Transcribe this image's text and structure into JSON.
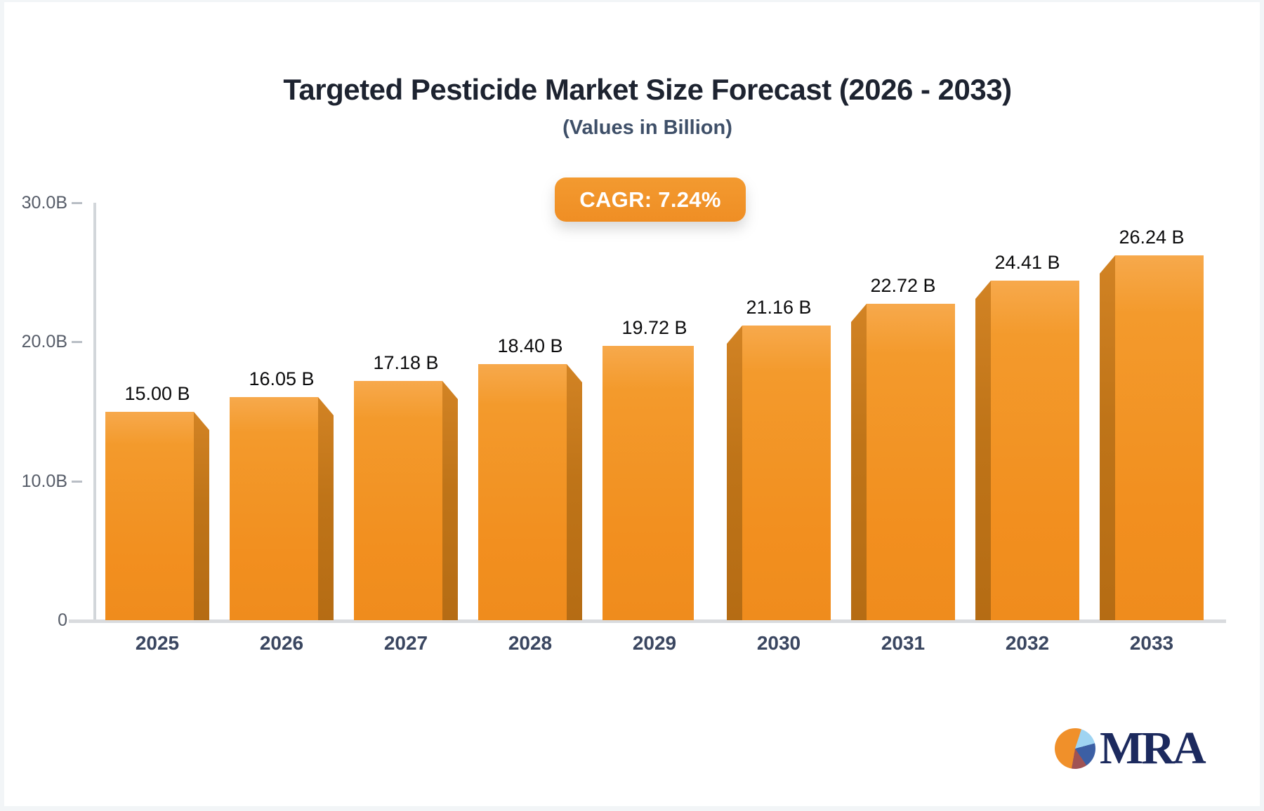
{
  "title": "Targeted Pesticide Market Size Forecast (2026 - 2033)",
  "subtitle": "(Values in Billion)",
  "badge": {
    "label": "CAGR: 7.24%"
  },
  "chart_data": {
    "type": "bar",
    "title": "Targeted Pesticide Market Size Forecast (2026 - 2033)",
    "subtitle": "(Values in Billion)",
    "annotation": "CAGR: 7.24%",
    "categories": [
      "2025",
      "2026",
      "2027",
      "2028",
      "2029",
      "2030",
      "2031",
      "2032",
      "2033"
    ],
    "values": [
      15.0,
      16.05,
      17.18,
      18.4,
      19.72,
      21.16,
      22.72,
      24.41,
      26.24
    ],
    "value_labels": [
      "15.00 B",
      "16.05 B",
      "17.18 B",
      "18.40 B",
      "19.72 B",
      "21.16 B",
      "22.72 B",
      "24.41 B",
      "26.24 B"
    ],
    "xlabel": "",
    "ylabel": "",
    "ylim": [
      0,
      30
    ],
    "y_ticks": [
      {
        "label": "30.0B",
        "value": 30
      },
      {
        "label": "20.0B",
        "value": 20
      },
      {
        "label": "10.0B",
        "value": 10
      },
      {
        "label": "0",
        "value": 0
      }
    ],
    "grid": false,
    "legend": false,
    "bar_color": "#F2911F",
    "bar_side_color": "#BF7418",
    "label_color": "#0B0B0C",
    "axis_color": "#D2D6DA"
  },
  "colors": {
    "accent_orange": "#F0922B",
    "title_text": "#1D2330",
    "subtitle_text": "#3E4F68",
    "year_text": "#3A4660",
    "ytick_text": "#565C68"
  },
  "logo": {
    "text": "MRA"
  }
}
